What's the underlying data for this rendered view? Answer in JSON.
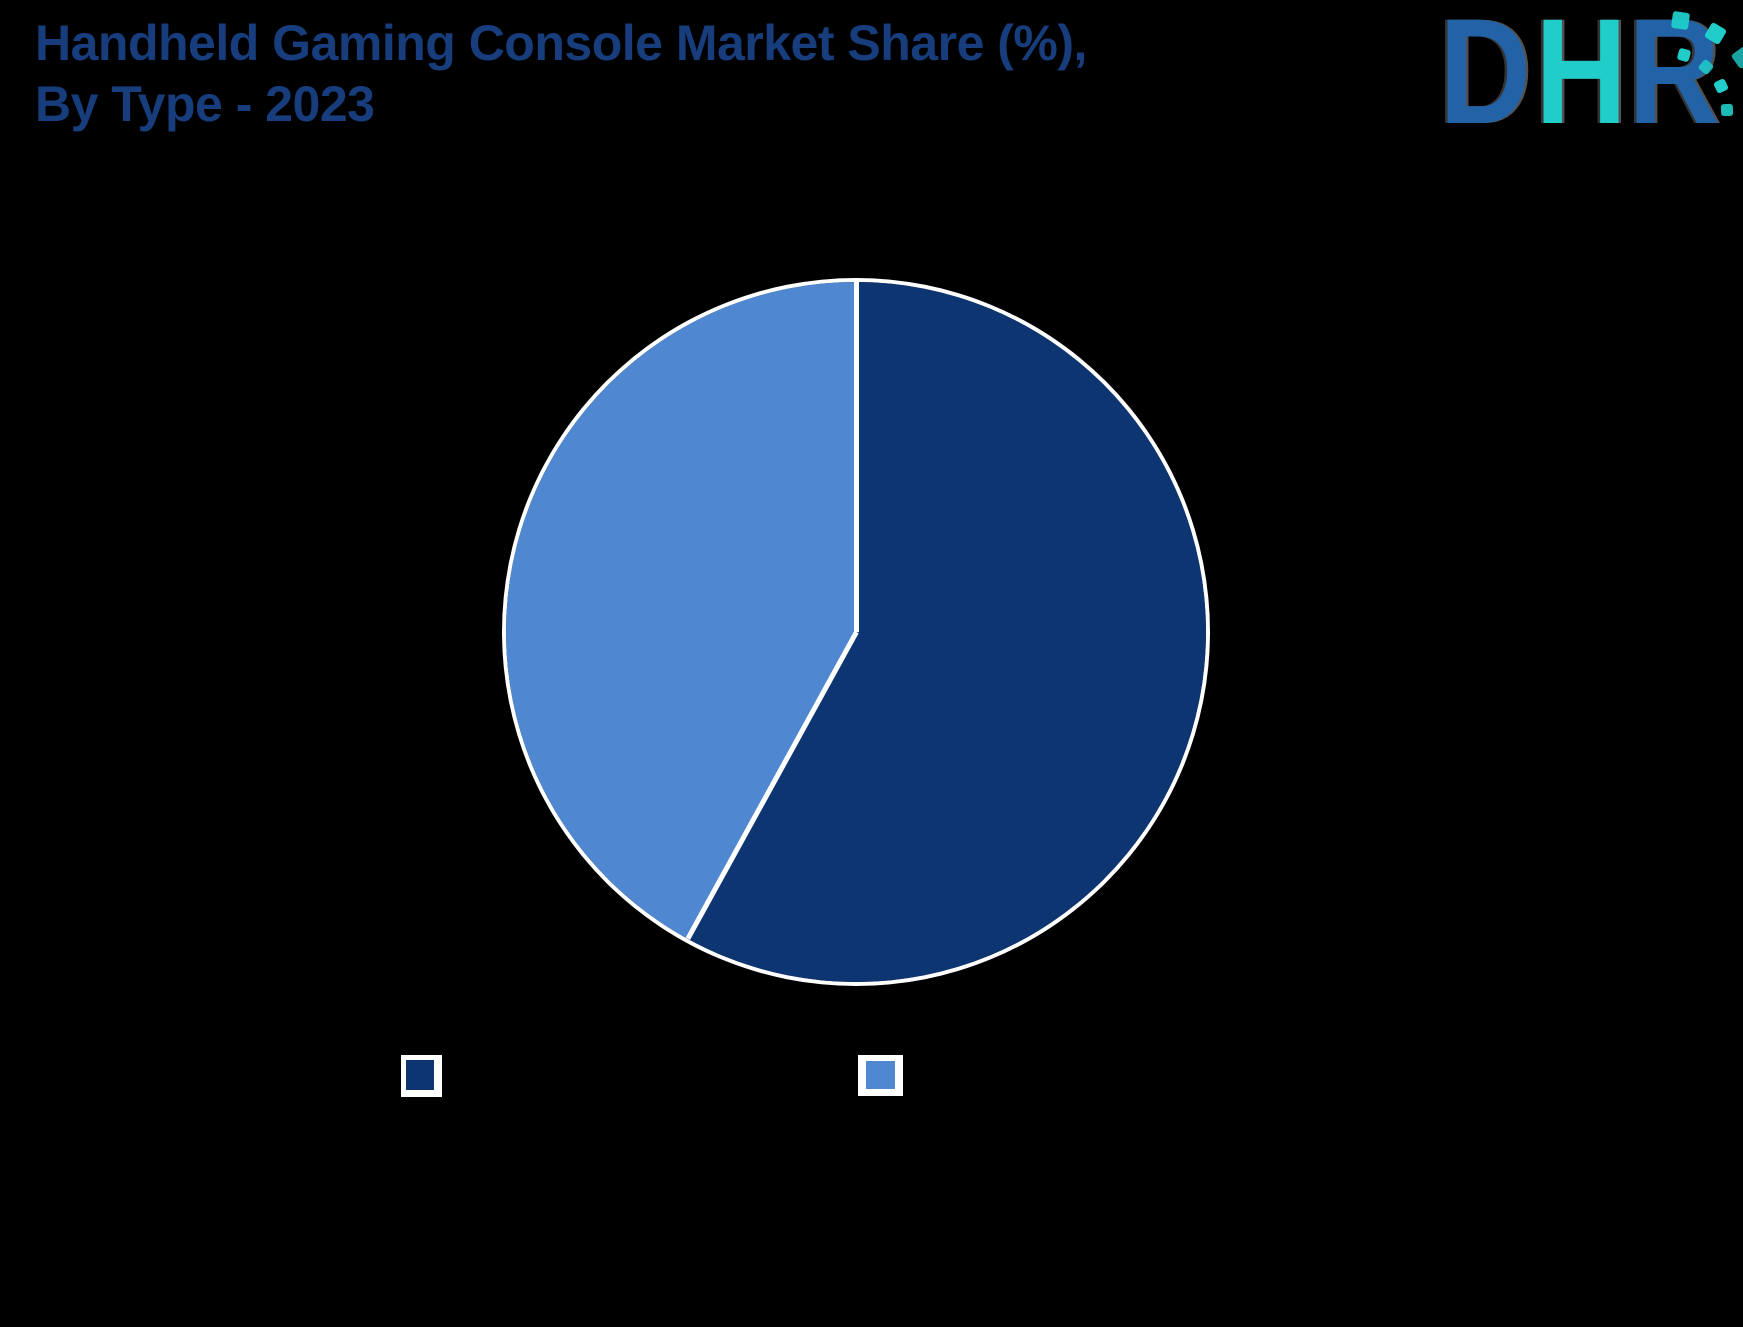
{
  "header": {
    "title_line1": "Handheld Gaming Console Market Share (%),",
    "title_line2": "By Type - 2023",
    "title_color": "#173d7d"
  },
  "logo": {
    "letters": [
      {
        "char": "D",
        "color": "#2263a8"
      },
      {
        "char": "H",
        "color": "#20cdc9"
      },
      {
        "char": "R",
        "color": "#2263a8"
      }
    ],
    "dot_color": "#20cdc9"
  },
  "chart_data": {
    "type": "pie",
    "title": "Handheld Gaming Console Market Share (%), By Type - 2023",
    "slices": [
      {
        "label": "",
        "value": 58,
        "color": "#0d3572"
      },
      {
        "label": "",
        "value": 42,
        "color": "#4f88d1"
      }
    ],
    "start_angle_deg": 0,
    "direction": "clockwise",
    "slice_border_color": "#ffffff",
    "legend_position": "bottom",
    "legend_labels_visible": false,
    "background": "transparent-rendered-black"
  },
  "legend": {
    "items": [
      {
        "label": "",
        "color": "#0d3572"
      },
      {
        "label": "",
        "color": "#4f88d1"
      }
    ]
  }
}
